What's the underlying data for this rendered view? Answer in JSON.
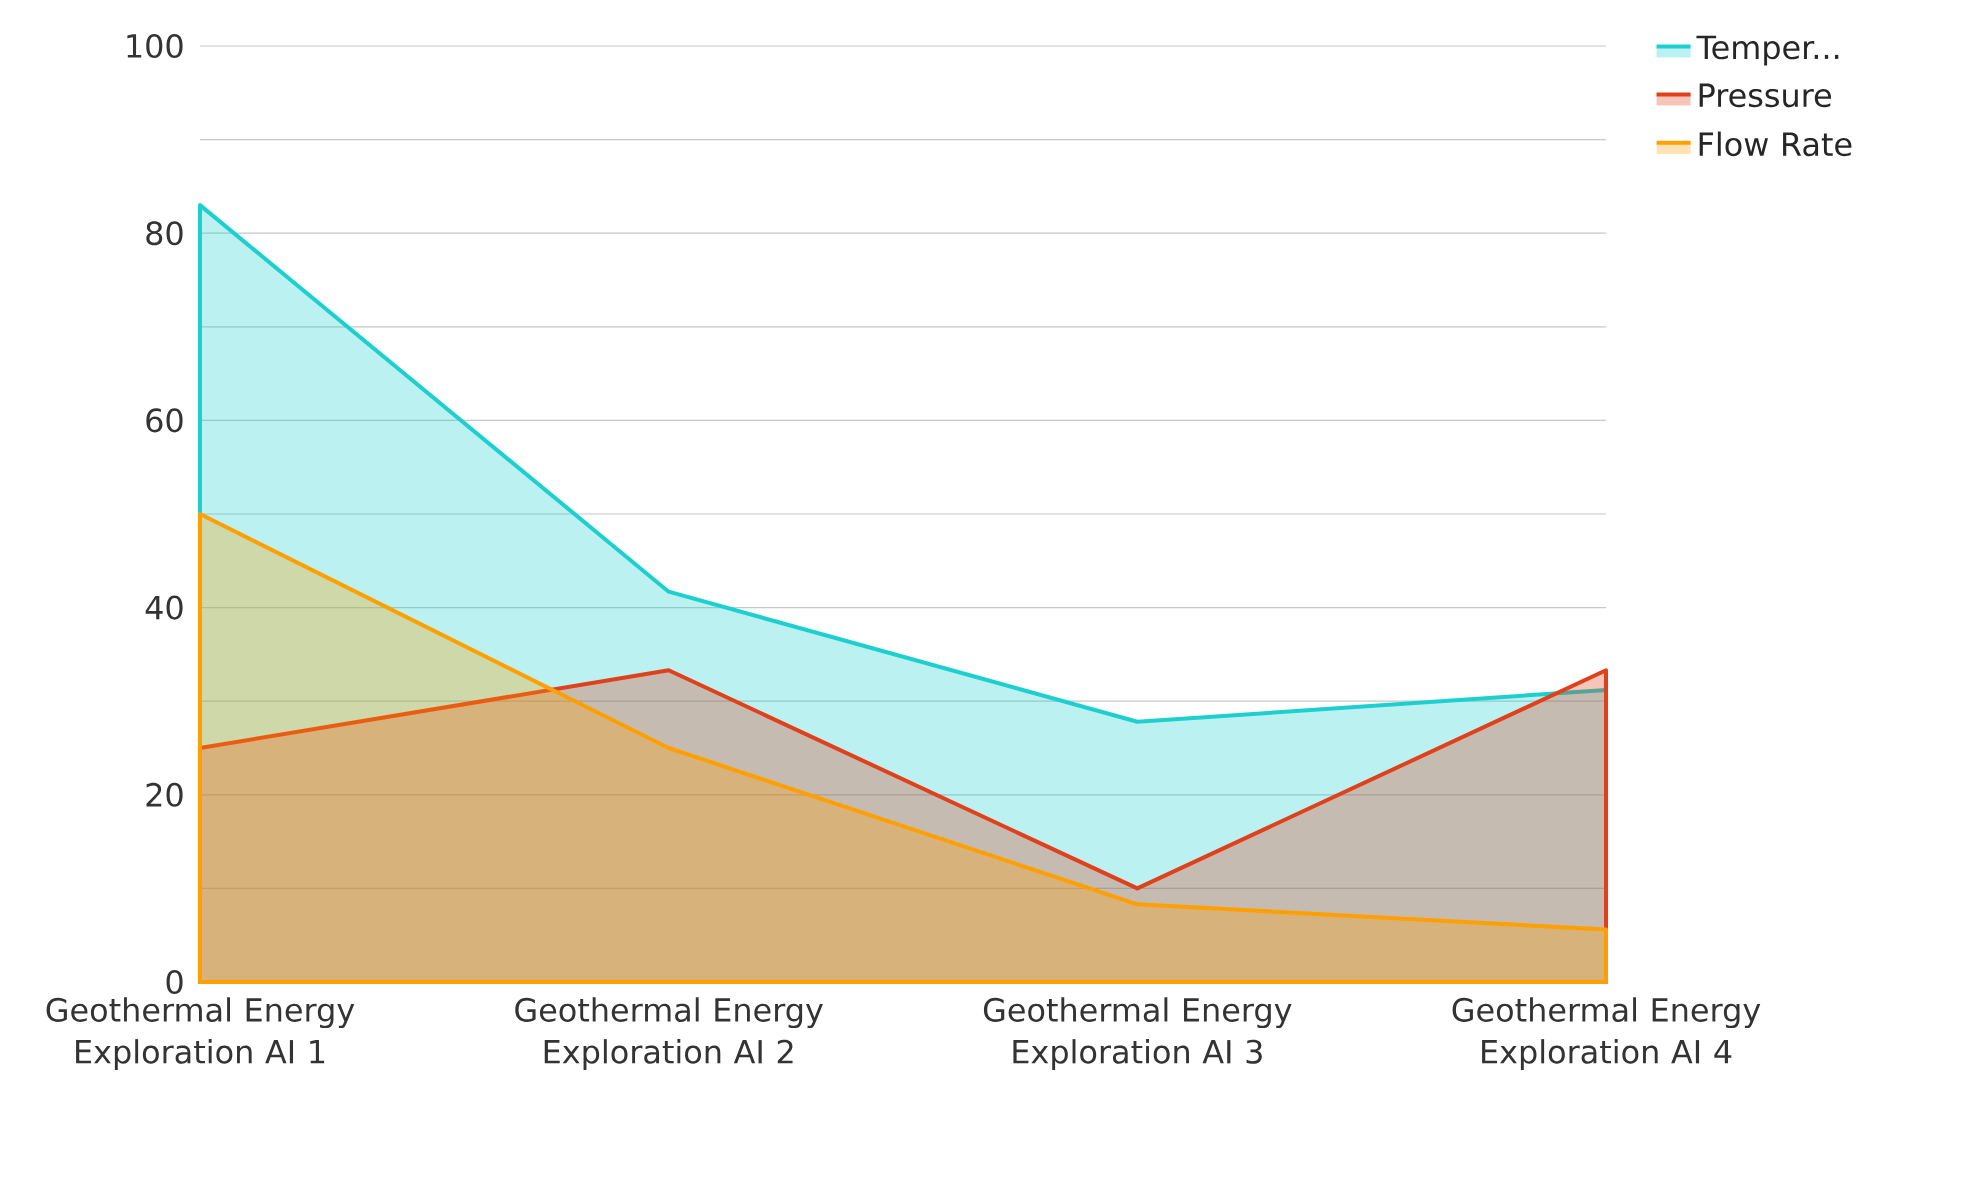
{
  "chart_data": {
    "type": "area",
    "categories": [
      "Geothermal Energy Exploration AI 1",
      "Geothermal Energy Exploration AI 2",
      "Geothermal Energy Exploration AI 3",
      "Geothermal Energy Exploration AI 4"
    ],
    "series": [
      {
        "name": "Temper...",
        "color": "#1ecfcf",
        "values": [
          83,
          41.7,
          27.8,
          31.2
        ]
      },
      {
        "name": "Pressure",
        "color": "#e0401a",
        "values": [
          25,
          33.3,
          10,
          33.3
        ]
      },
      {
        "name": "Flow Rate",
        "color": "#ff9f00",
        "values": [
          50,
          25,
          8.3,
          5.6
        ]
      }
    ],
    "ylim": [
      0,
      100
    ],
    "yticks": [
      0,
      {
        "value": 10,
        "label": null
      },
      20,
      {
        "value": 30,
        "label": null
      },
      40,
      {
        "value": 50,
        "label": null
      },
      60,
      {
        "value": 70,
        "label": null
      },
      80,
      {
        "value": 90,
        "label": null
      },
      100
    ],
    "grid": "y",
    "legend": "top right"
  }
}
